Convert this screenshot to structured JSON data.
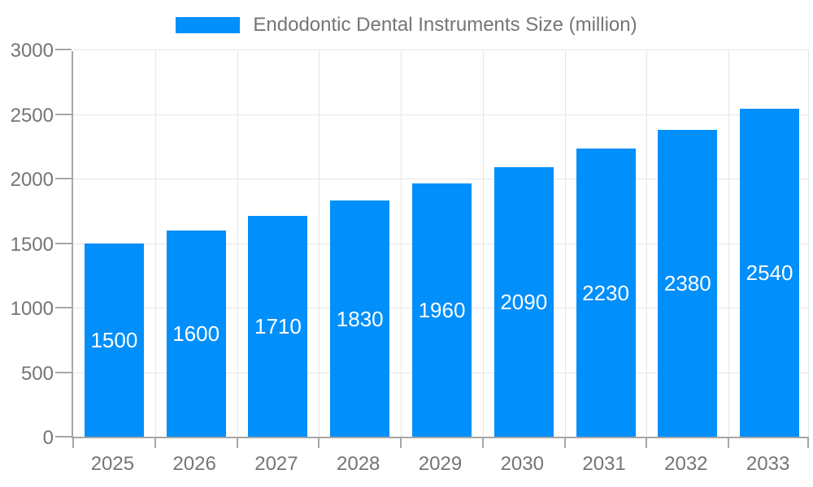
{
  "chart_data": {
    "type": "bar",
    "title": "Endodontic Dental Instruments Size (million)",
    "legend": {
      "label": "Endodontic Dental Instruments Size (million)",
      "position": "top"
    },
    "categories": [
      "2025",
      "2026",
      "2027",
      "2028",
      "2029",
      "2030",
      "2031",
      "2032",
      "2033"
    ],
    "series": [
      {
        "name": "Endodontic Dental Instruments Size (million)",
        "values": [
          1500,
          1600,
          1710,
          1830,
          1960,
          2090,
          2230,
          2380,
          2540
        ]
      }
    ],
    "value_labels": [
      "1500",
      "1600",
      "1710",
      "1830",
      "1960",
      "2090",
      "2230",
      "2380",
      "2540"
    ],
    "xlabel": "",
    "ylabel": "",
    "ylim": [
      0,
      3000
    ],
    "yticks": [
      0,
      500,
      1000,
      1500,
      2000,
      2500,
      3000
    ],
    "ytick_labels": [
      "0",
      "500",
      "1000",
      "1500",
      "2000",
      "2500",
      "3000"
    ],
    "grid": true,
    "colors": {
      "bar": "#008FFB",
      "value_label_text": "#ffffff",
      "axis_text": "#757575",
      "legend_text": "#757575",
      "gridline": "#e6e6e6",
      "axis_line": "#a6a6a6",
      "background": "#ffffff"
    }
  }
}
